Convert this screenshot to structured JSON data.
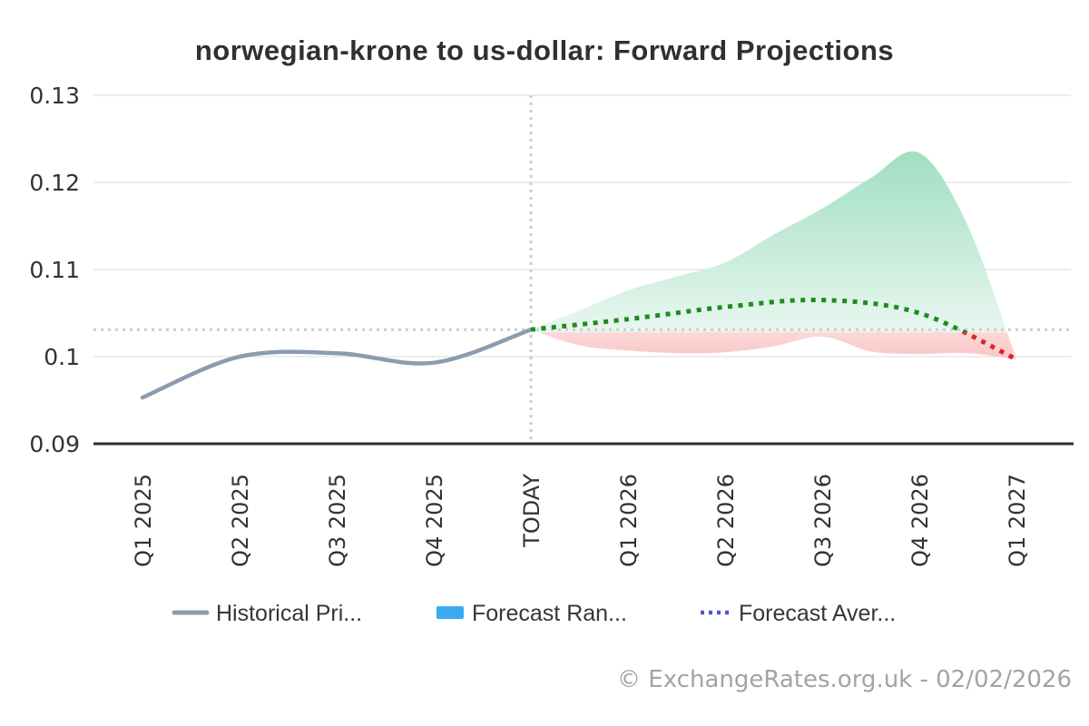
{
  "title": "norwegian-krone to us-dollar: Forward Projections",
  "watermark": "© ExchangeRates.org.uk - 02/02/2026",
  "legend": [
    {
      "label": "Historical Pri...",
      "type": "line",
      "color": "#8b9cb0"
    },
    {
      "label": "Forecast Ran...",
      "type": "area",
      "color": "#3aabf2"
    },
    {
      "label": "Forecast Aver...",
      "type": "dotted",
      "color": "#5156c9"
    }
  ],
  "chart_data": {
    "type": "line+arearange",
    "title": "norwegian-krone to us-dollar: Forward Projections",
    "categories": [
      "Q1 2025",
      "Q2 2025",
      "Q3 2025",
      "Q4 2025",
      "TODAY",
      "Q1 2026",
      "Q2 2026",
      "Q3 2026",
      "Q4 2026",
      "Q1 2027"
    ],
    "ylim": [
      0.09,
      0.13
    ],
    "yticks": [
      0.09,
      0.1,
      0.11,
      0.12,
      0.13
    ],
    "ytick_labels": [
      "0.09",
      "0.1",
      "0.11",
      "0.12",
      "0.13"
    ],
    "grid": "horizontal",
    "legend_position": "bottom",
    "current_price": 0.1031,
    "today_index": 4,
    "guide_color": "#cccccc",
    "series": [
      {
        "name": "Historical Price",
        "type": "line",
        "color": "#8b9cb0",
        "points": [
          {
            "i": 0,
            "v": 0.0953
          },
          {
            "i": 1,
            "v": 0.1
          },
          {
            "i": 2,
            "v": 0.1004
          },
          {
            "i": 3,
            "v": 0.0993
          },
          {
            "i": 4,
            "v": 0.1031
          }
        ]
      },
      {
        "name": "Forecast Range",
        "type": "arearange",
        "color_above_top": "#9bdcbe",
        "color_above_bottom": "#e9f7f0",
        "color_below_top": "#fcd9d9",
        "color_below_bottom": "#f9c3c3",
        "points": [
          {
            "i": 4,
            "lower": 0.1031,
            "upper": 0.1031
          },
          {
            "i": 4.5,
            "lower": 0.1013,
            "upper": 0.1053
          },
          {
            "i": 5,
            "lower": 0.1007,
            "upper": 0.1076
          },
          {
            "i": 5.5,
            "lower": 0.1004,
            "upper": 0.1092
          },
          {
            "i": 6,
            "lower": 0.1005,
            "upper": 0.1108
          },
          {
            "i": 6.5,
            "lower": 0.1012,
            "upper": 0.114
          },
          {
            "i": 7,
            "lower": 0.1023,
            "upper": 0.117
          },
          {
            "i": 7.5,
            "lower": 0.1006,
            "upper": 0.1205
          },
          {
            "i": 8,
            "lower": 0.1003,
            "upper": 0.1234
          },
          {
            "i": 8.5,
            "lower": 0.1004,
            "upper": 0.115
          },
          {
            "i": 9,
            "lower": 0.0997,
            "upper": 0.0997
          }
        ]
      },
      {
        "name": "Forecast Average",
        "type": "dotted-line",
        "color_above": "#1f8b1f",
        "color_below": "#d92525",
        "points": [
          {
            "i": 4,
            "v": 0.1031
          },
          {
            "i": 5,
            "v": 0.1043
          },
          {
            "i": 6,
            "v": 0.1057
          },
          {
            "i": 7,
            "v": 0.1065
          },
          {
            "i": 8,
            "v": 0.105
          },
          {
            "i": 9,
            "v": 0.0997
          }
        ]
      }
    ]
  }
}
